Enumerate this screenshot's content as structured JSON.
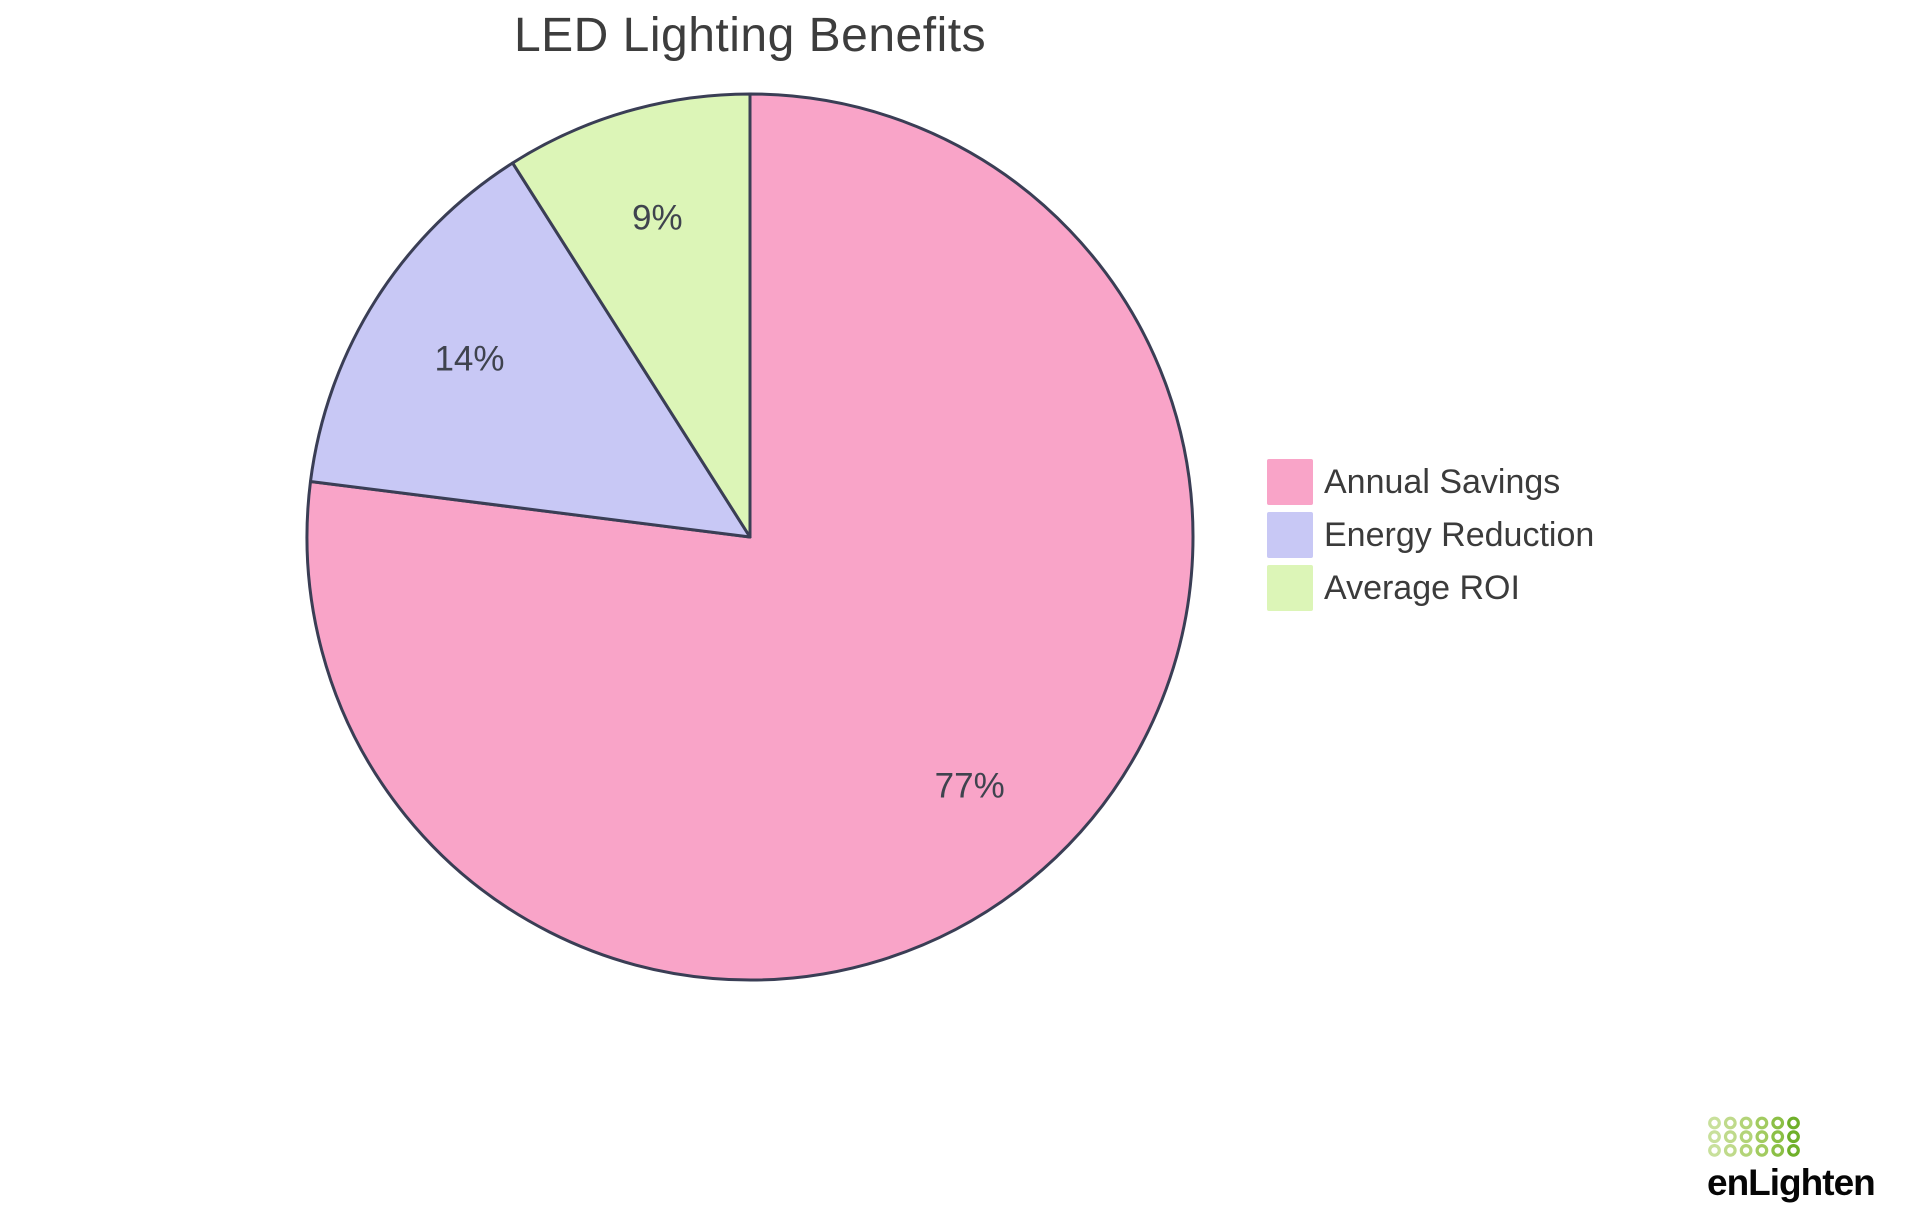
{
  "chart_data": {
    "type": "pie",
    "title": "LED Lighting Benefits",
    "categories": [
      "Annual Savings",
      "Energy Reduction",
      "Average ROI"
    ],
    "values": [
      77,
      14,
      9
    ],
    "labels_pct": [
      "77%",
      "14%",
      "9%"
    ],
    "colors": [
      "#F9A4C8",
      "#C8C8F5",
      "#DCF5B7"
    ],
    "stroke_color": "#3A3E55",
    "stroke_width": 3,
    "start_angle_deg": 0,
    "direction": "clockwise",
    "legend_position": "right",
    "label_color": "#3F434E",
    "label_radius_fraction": 0.75,
    "label_font_size": 35
  },
  "logo": {
    "text": "enLighten",
    "dot_rows": 3,
    "dot_cols": 6,
    "dot_colors": [
      "#C8E09B",
      "#BFDA8B",
      "#B3D478",
      "#A2CB60",
      "#8CC046",
      "#6FB02A"
    ]
  }
}
